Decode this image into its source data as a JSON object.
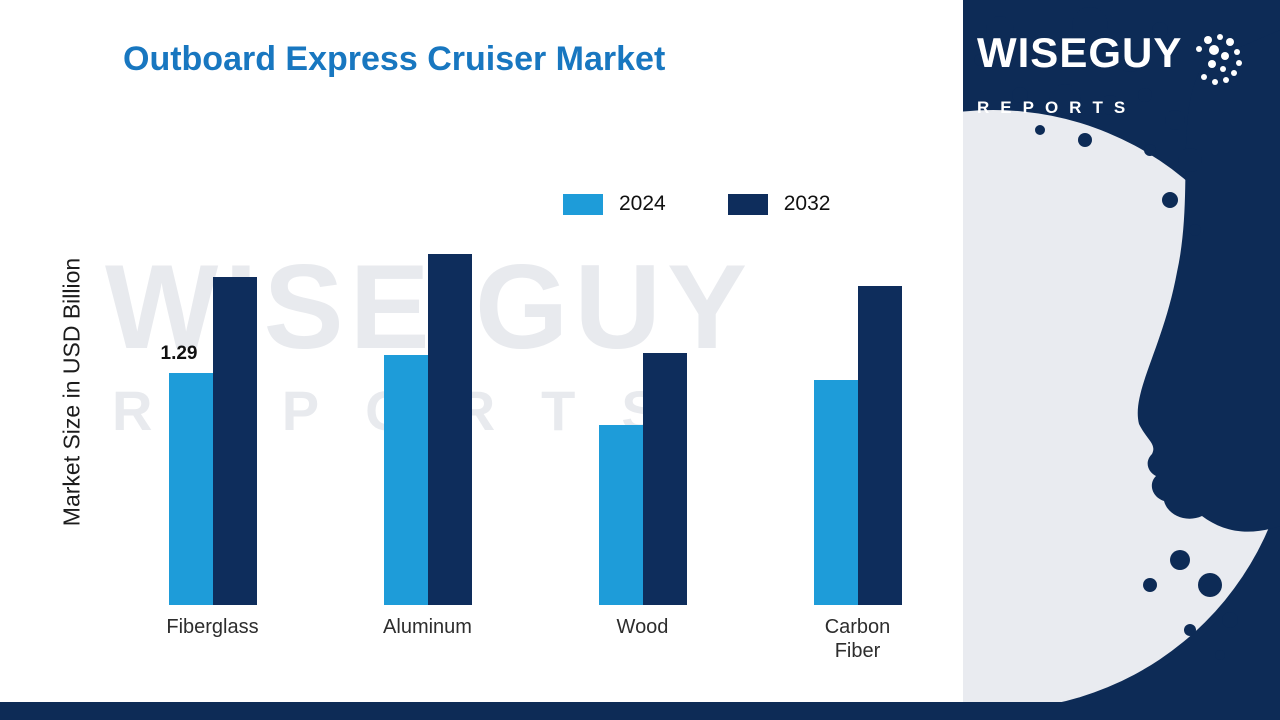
{
  "page": {
    "title": "Outboard Express Cruiser Market"
  },
  "branding": {
    "logo_line1": "WISEGUY",
    "logo_line2": "REPORTS",
    "watermark_line1": "WISE GUY",
    "watermark_line2": "REPORTS"
  },
  "colors": {
    "title_blue": "#1877c0",
    "band_navy": "#0d2b56",
    "series_2024": "#1e9cd9",
    "series_2032": "#0e2d5c",
    "watermark_gray": "#e8eaee"
  },
  "chart_data": {
    "type": "bar",
    "title": "Outboard Express Cruiser Market",
    "xlabel": "",
    "ylabel": "Market Size in USD Billion",
    "categories": [
      "Fiberglass",
      "Aluminum",
      "Wood",
      "Carbon Fiber"
    ],
    "series": [
      {
        "name": "2024",
        "color": "#1e9cd9",
        "values": [
          1.29,
          1.39,
          1.0,
          1.25
        ]
      },
      {
        "name": "2032",
        "color": "#0e2d5c",
        "values": [
          1.82,
          1.95,
          1.4,
          1.77
        ]
      }
    ],
    "annotation": {
      "text": "1.29",
      "category_index": 0,
      "series_index": 0
    },
    "ylim": [
      0,
      2.0
    ],
    "grid": false,
    "legend_position": "top"
  }
}
